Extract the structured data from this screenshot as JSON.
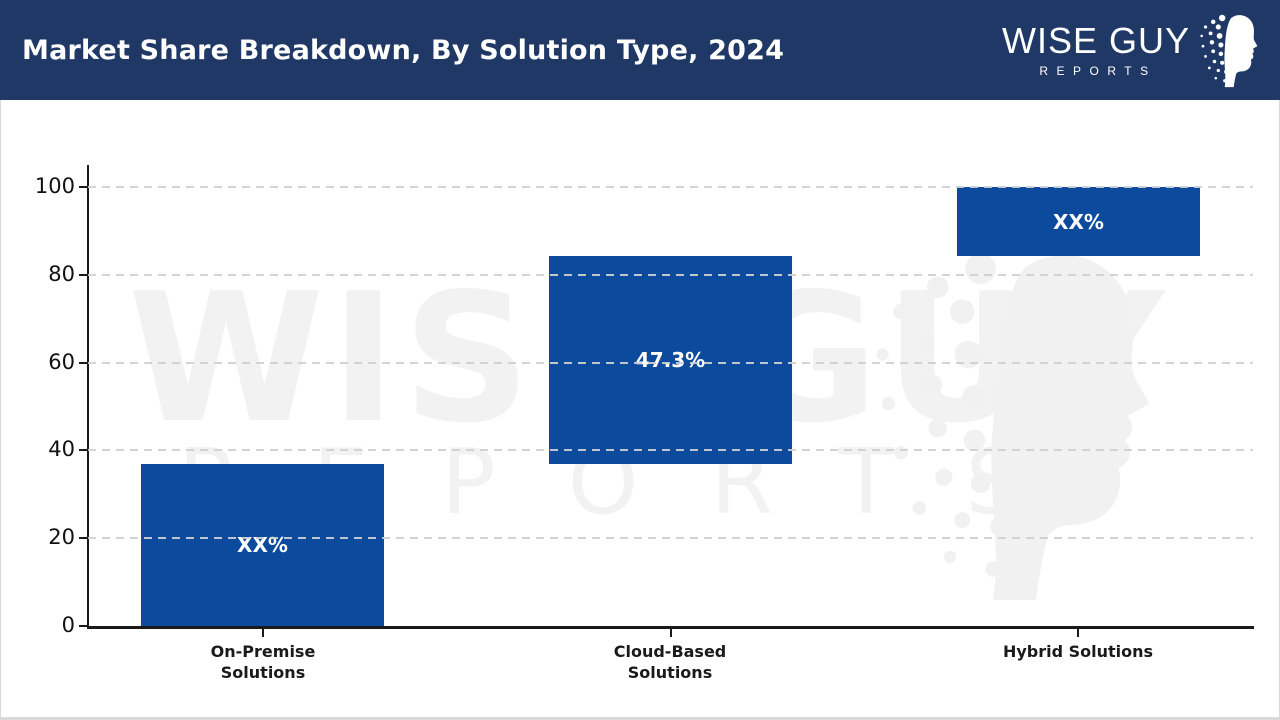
{
  "header": {
    "title": "Market Share Breakdown, By Solution Type, 2024",
    "logo": {
      "wise_guy": "WISE GUY",
      "reports": "REPORTS"
    }
  },
  "watermark": {
    "wise_guy": "WISE GUY",
    "reports": "REPORTS"
  },
  "chart_data": {
    "type": "bar",
    "subtype": "waterfall",
    "title": "Market Share Breakdown, By Solution Type, 2024",
    "categories": [
      "On-Premise Solutions",
      "Cloud-Based Solutions",
      "Hybrid Solutions"
    ],
    "category_label_lines": [
      [
        "On-Premise",
        "Solutions"
      ],
      [
        "Cloud-Based",
        "Solutions"
      ],
      [
        "Hybrid Solutions"
      ]
    ],
    "bars": [
      {
        "category": "On-Premise Solutions",
        "start": 0,
        "end": 37,
        "label": "XX%"
      },
      {
        "category": "Cloud-Based Solutions",
        "start": 37,
        "end": 84.3,
        "label": "47.3%"
      },
      {
        "category": "Hybrid Solutions",
        "start": 84.3,
        "end": 100,
        "label": "XX%"
      }
    ],
    "xlabel": "",
    "ylabel": "",
    "yticks": [
      0,
      20,
      40,
      60,
      80,
      100
    ],
    "ylim": [
      0,
      105
    ],
    "grid": "horizontal-dashed-over-bars",
    "legend": "none",
    "bar_color": "#0c4a9e"
  },
  "colors": {
    "header_bg": "#203866",
    "bar_blue": "#0c4a9e",
    "gridline": "#d0d0d0",
    "axis": "#1a1a1a",
    "watermark": "#f2f2f2",
    "title_text": "#ffffff"
  }
}
